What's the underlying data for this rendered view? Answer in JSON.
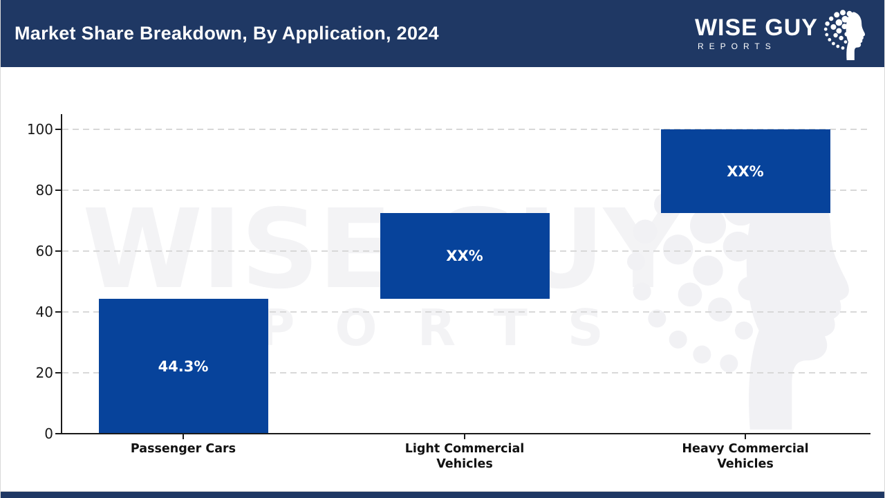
{
  "header": {
    "title": "Market Share Breakdown, By Application, 2024",
    "logo_line1": "WISE GUY",
    "logo_line2": "REPORTS",
    "bg_color": "#1f3864"
  },
  "watermark": {
    "line1": "WISE GUY",
    "line2": "REPORTS"
  },
  "chart_data": {
    "type": "bar",
    "subtype": "floating-waterfall",
    "title": "Market Share Breakdown, By Application, 2024",
    "categories": [
      "Passenger Cars",
      "Light Commercial\nVehicles",
      "Heavy Commercial\nVehicles"
    ],
    "segments": [
      {
        "category": "Passenger Cars",
        "start": 0,
        "end": 44.3,
        "label": "44.3%"
      },
      {
        "category": "Light Commercial Vehicles",
        "start": 44.3,
        "end": 72.5,
        "label": "XX%"
      },
      {
        "category": "Heavy Commercial Vehicles",
        "start": 72.5,
        "end": 100,
        "label": "XX%"
      }
    ],
    "ylim": [
      0,
      100
    ],
    "y_ticks": [
      0,
      20,
      40,
      60,
      80,
      100
    ],
    "xlabel": "",
    "ylabel": "",
    "bar_color": "#07439b",
    "bar_label_color": "#ffffff",
    "grid": "horizontal-dashed",
    "legend": "none"
  }
}
